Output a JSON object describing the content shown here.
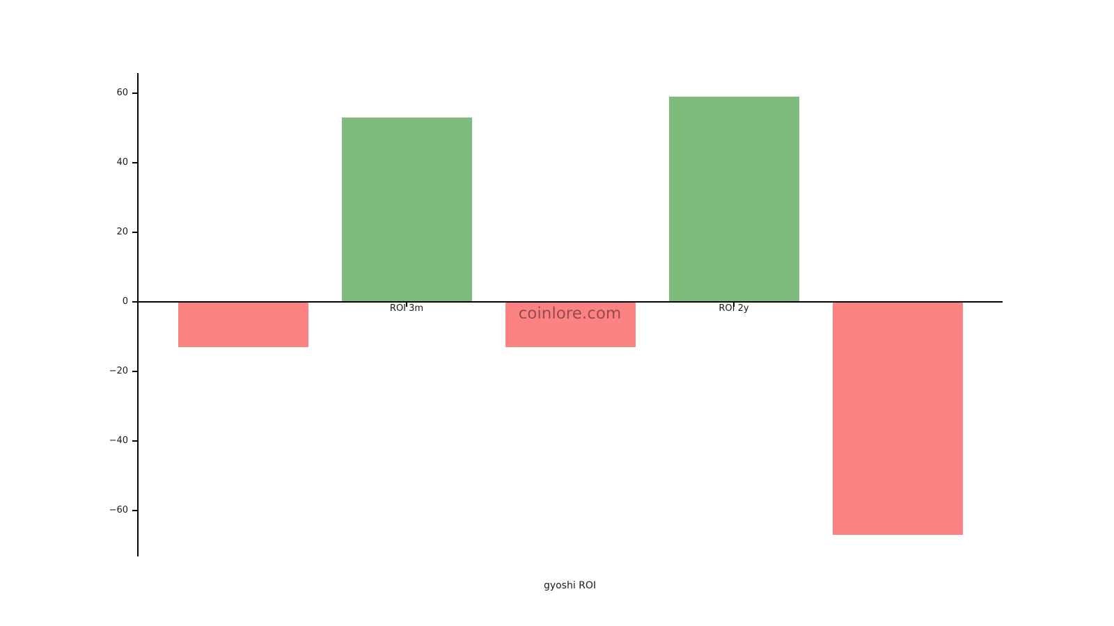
{
  "watermark": "coinlore.com",
  "chart_data": {
    "type": "bar",
    "title": "",
    "xlabel": "gyoshi ROI",
    "ylabel": "",
    "categories": [
      "",
      "ROI 3m",
      "",
      "ROI 2y",
      ""
    ],
    "values": [
      -13,
      53,
      -13,
      59,
      -67
    ],
    "y_ticks": [
      60,
      40,
      20,
      0,
      -20,
      -40,
      -60
    ],
    "ylim": [
      -73,
      66
    ],
    "grid": false,
    "legend": null,
    "positive_color": "#7ebc7e",
    "negative_color": "#fd8383",
    "axis_color": "#000000",
    "background_color": "#ffffff"
  }
}
